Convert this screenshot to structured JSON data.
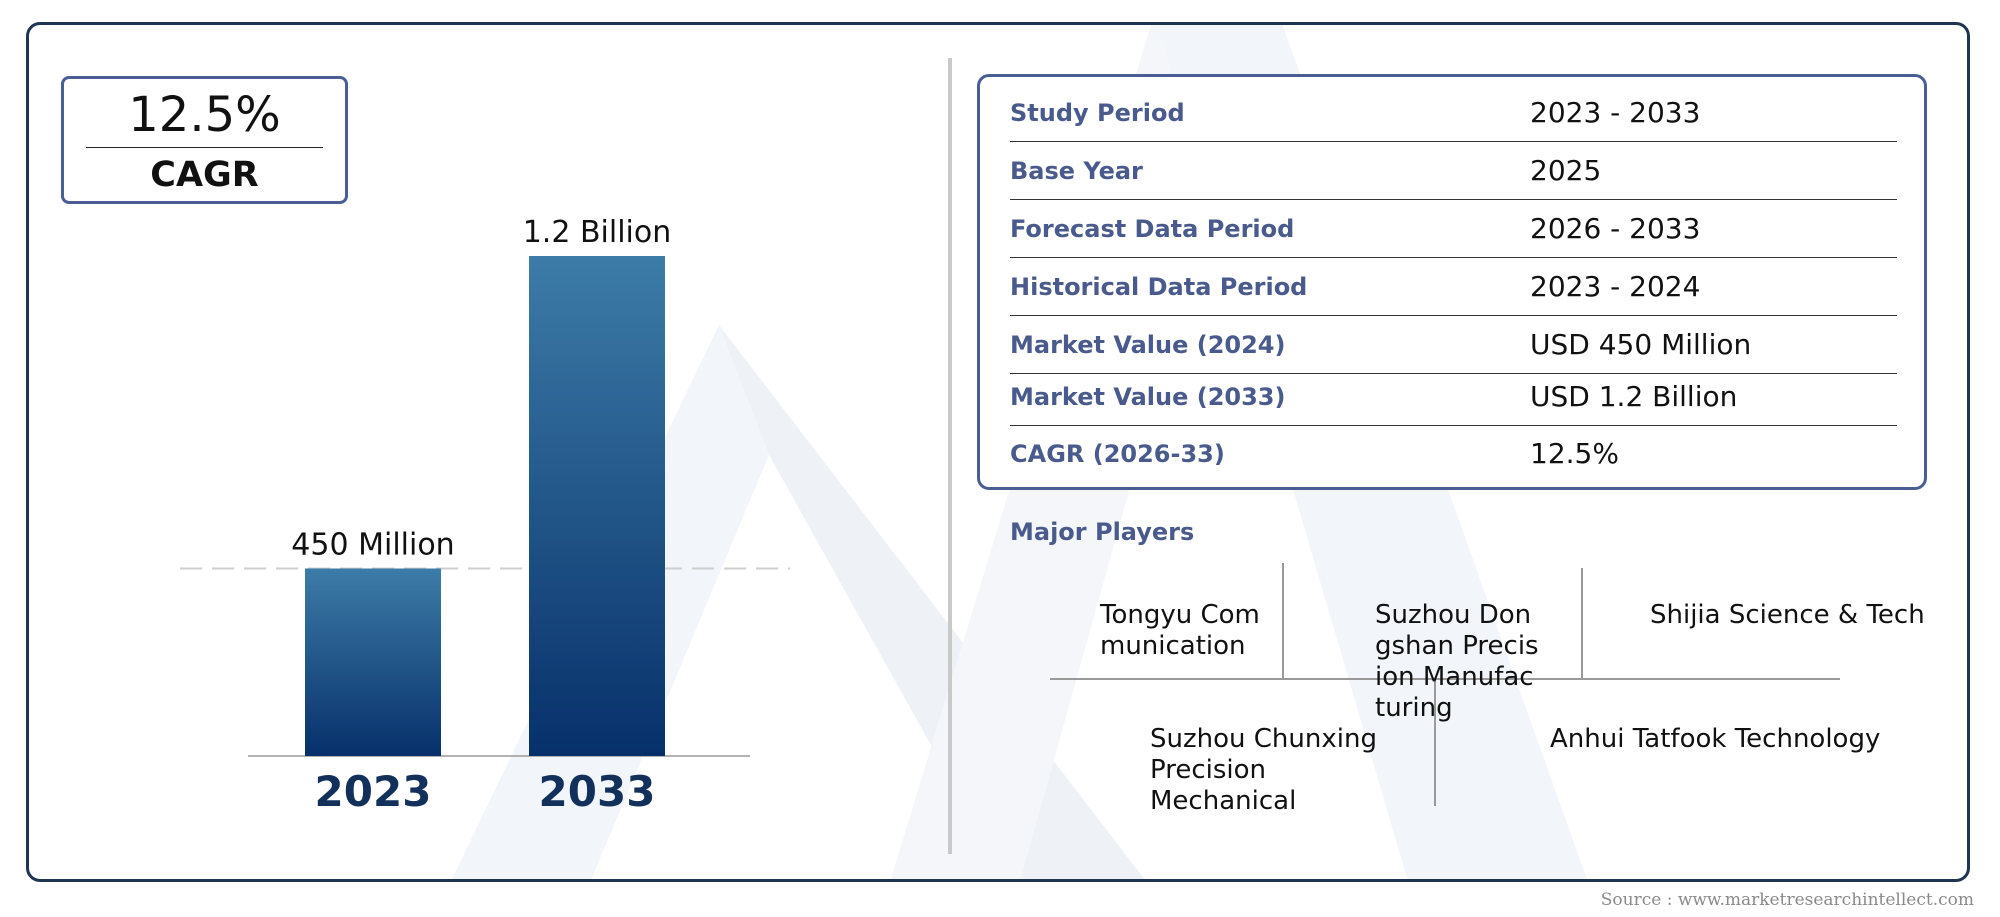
{
  "cagr_box": {
    "value": "12.5%",
    "label": "CAGR"
  },
  "chart_data": {
    "type": "bar",
    "categories": [
      "2023",
      "2033"
    ],
    "values": [
      0.45,
      1.2
    ],
    "units": "USD Billion",
    "data_labels": [
      "450 Million",
      "1.2 Billion"
    ],
    "bar_colors": {
      "top": "#3d7ca8",
      "bottom": "#07306a"
    },
    "reference_line_value": 0.45
  },
  "info_table": [
    {
      "key": "Study Period",
      "value": "2023 - 2033"
    },
    {
      "key": "Base Year",
      "value": "2025"
    },
    {
      "key": "Forecast Data Period",
      "value": "2026 - 2033"
    },
    {
      "key": "Historical Data Period",
      "value": "2023 - 2024"
    },
    {
      "key": "Market Value (2024)",
      "value": "USD 450 Million"
    },
    {
      "key": "Market Value (2033)",
      "value": "USD 1.2 Billion"
    },
    {
      "key": "CAGR (2026-33)",
      "value": "12.5%"
    }
  ],
  "major_players": {
    "title": "Major Players",
    "items": [
      "Tongyu Communication",
      "Suzhou Dongshan Precision Manufacturing",
      "Shijia Science & Tech",
      "Suzhou Chunxing Precision Mechanical",
      "Anhui Tatfook Technology"
    ]
  },
  "source": "Source : www.marketresearchintellect.com",
  "colors": {
    "frame": "#1f3550",
    "accent": "#4a5a8c",
    "watermark": "#f1f4f8"
  }
}
